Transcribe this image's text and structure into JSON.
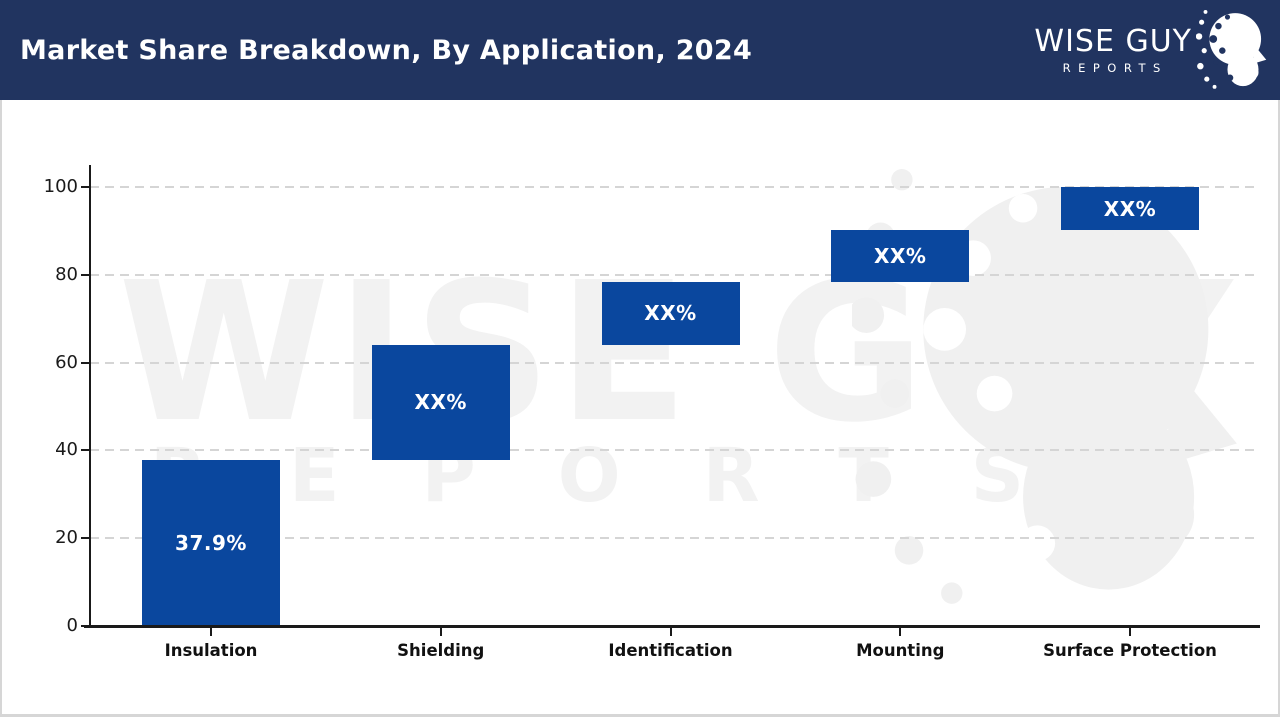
{
  "header": {
    "title": "Market Share Breakdown, By Application, 2024",
    "logo": {
      "brand": "WISE GUY",
      "tagline": "REPORTS"
    }
  },
  "watermark": {
    "brand": "WISE GUY",
    "tagline": "REPORTS"
  },
  "chart_data": {
    "type": "bar",
    "subtype": "waterfall",
    "title": "Market Share Breakdown, By Application, 2024",
    "unit": "%",
    "categories": [
      "Insulation",
      "Shielding",
      "Identification",
      "Mounting",
      "Surface Protection"
    ],
    "yticks": [
      0,
      20,
      40,
      60,
      80,
      100
    ],
    "ylim": [
      0,
      105
    ],
    "grid": "horizontal-dashed",
    "legend": "none",
    "bar_color": "#0a479e",
    "segments": [
      {
        "category": "Insulation",
        "start": 0,
        "end": 37.9,
        "value": 37.9,
        "label": "37.9%"
      },
      {
        "category": "Shielding",
        "start": 37.9,
        "end": 64.1,
        "value": 26.2,
        "label": "XX%"
      },
      {
        "category": "Identification",
        "start": 64.1,
        "end": 78.4,
        "value": 14.3,
        "label": "XX%"
      },
      {
        "category": "Mounting",
        "start": 78.4,
        "end": 90.2,
        "value": 11.8,
        "label": "XX%"
      },
      {
        "category": "Surface Protection",
        "start": 90.2,
        "end": 100,
        "value": 9.8,
        "label": "XX%"
      }
    ]
  },
  "colors": {
    "header_bg": "#213460",
    "bar": "#0a479e",
    "axis": "#1a1a1a",
    "grid": "#d5d5d5",
    "watermark": "#f2f2f2"
  }
}
